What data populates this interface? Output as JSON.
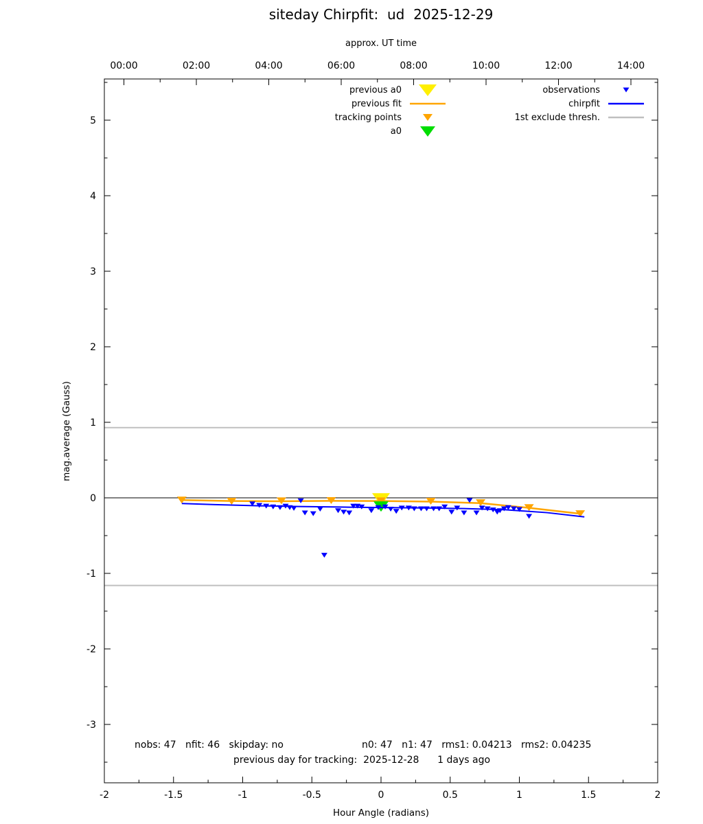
{
  "title": "siteday Chirpfit:  ud  2025-12-29",
  "top_axis": {
    "label": "approx. UT time",
    "ticks": [
      "00:00",
      "02:00",
      "04:00",
      "06:00",
      "08:00",
      "10:00",
      "12:00",
      "14:00"
    ]
  },
  "x_axis": {
    "label": "Hour Angle (radians)",
    "ticks": [
      "-2",
      "-1.5",
      "-1",
      "-0.5",
      "0",
      "0.5",
      "1",
      "1.5",
      "2"
    ]
  },
  "y_axis": {
    "label": "mag.average (Gauss)",
    "ticks": [
      "5",
      "4",
      "3",
      "2",
      "1",
      "0",
      "-1",
      "-2",
      "-3"
    ]
  },
  "legend": {
    "left": [
      {
        "label": "previous a0",
        "marker": "big-triangle",
        "color": "#ffef00"
      },
      {
        "label": "previous fit",
        "marker": "line",
        "color": "#ffa500"
      },
      {
        "label": "tracking points",
        "marker": "small-triangle",
        "color": "#ffa500"
      },
      {
        "label": "a0",
        "marker": "big-triangle2",
        "color": "#00dd00"
      }
    ],
    "right": [
      {
        "label": "observations",
        "marker": "tiny-triangle",
        "color": "#0000ff"
      },
      {
        "label": "chirpfit",
        "marker": "line",
        "color": "#0000ff"
      },
      {
        "label": "1st exclude thresh.",
        "marker": "line",
        "color": "#bfbfbf"
      }
    ]
  },
  "stats": {
    "line1_left": "nobs: 47   nfit: 46   skipday: no",
    "line1_right": "n0: 47   n1: 47   rms1: 0.04213   rms2: 0.04235",
    "line2": "previous day for tracking:  2025-12-28      1 days ago"
  },
  "colors": {
    "observations": "#0000ff",
    "chirpfit": "#0000ff",
    "previous_fit": "#ffa500",
    "tracking_points": "#ffa500",
    "previous_a0": "#ffef00",
    "a0": "#00dd00",
    "threshold": "#bfbfbf",
    "axis": "#000000"
  },
  "chart_data": {
    "type": "scatter",
    "title": "siteday Chirpfit:  ud  2025-12-29",
    "xlabel": "Hour Angle (radians)",
    "ylabel": "mag.average (Gauss)",
    "x2label": "approx. UT time",
    "xlim": [
      -2,
      2
    ],
    "ylim": [
      -3.77,
      5.55
    ],
    "x_ticks_major": [
      -2,
      -1.5,
      -1,
      -0.5,
      0,
      0.5,
      1,
      1.5,
      2
    ],
    "x_ticks_minor_step": 0.25,
    "y_ticks_major": [
      5,
      4,
      3,
      2,
      1,
      0,
      -1,
      -2,
      -3
    ],
    "y_ticks_minor_step": 0.5,
    "top_ticks_hours": [
      "00:00",
      "02:00",
      "04:00",
      "06:00",
      "08:00",
      "10:00",
      "12:00",
      "14:00"
    ],
    "zero_line": 0,
    "series": {
      "observations": {
        "type": "scatter",
        "marker": "triangle-down",
        "color": "#0000ff",
        "points": [
          [
            -0.93,
            -0.08
          ],
          [
            -0.88,
            -0.1
          ],
          [
            -0.83,
            -0.11
          ],
          [
            -0.78,
            -0.12
          ],
          [
            -0.73,
            -0.13
          ],
          [
            -0.69,
            -0.11
          ],
          [
            -0.66,
            -0.13
          ],
          [
            -0.63,
            -0.14
          ],
          [
            -0.58,
            -0.04
          ],
          [
            -0.55,
            -0.2
          ],
          [
            -0.49,
            -0.21
          ],
          [
            -0.44,
            -0.15
          ],
          [
            -0.41,
            -0.76
          ],
          [
            -0.31,
            -0.17
          ],
          [
            -0.27,
            -0.19
          ],
          [
            -0.23,
            -0.2
          ],
          [
            -0.2,
            -0.11
          ],
          [
            -0.17,
            -0.11
          ],
          [
            -0.14,
            -0.12
          ],
          [
            -0.07,
            -0.17
          ],
          [
            -0.02,
            -0.13
          ],
          [
            0.03,
            -0.12
          ],
          [
            0.07,
            -0.15
          ],
          [
            0.11,
            -0.18
          ],
          [
            0.15,
            -0.135
          ],
          [
            0.2,
            -0.135
          ],
          [
            0.24,
            -0.145
          ],
          [
            0.29,
            -0.145
          ],
          [
            0.33,
            -0.145
          ],
          [
            0.38,
            -0.145
          ],
          [
            0.42,
            -0.145
          ],
          [
            0.46,
            -0.12
          ],
          [
            0.51,
            -0.19
          ],
          [
            0.55,
            -0.135
          ],
          [
            0.6,
            -0.2
          ],
          [
            0.64,
            -0.035
          ],
          [
            0.69,
            -0.2
          ],
          [
            0.73,
            -0.135
          ],
          [
            0.77,
            -0.145
          ],
          [
            0.81,
            -0.16
          ],
          [
            0.84,
            -0.19
          ],
          [
            0.86,
            -0.17
          ],
          [
            0.89,
            -0.145
          ],
          [
            0.92,
            -0.13
          ],
          [
            0.96,
            -0.145
          ],
          [
            1.0,
            -0.155
          ],
          [
            1.07,
            -0.245
          ]
        ]
      },
      "tracking_points": {
        "type": "scatter",
        "marker": "triangle-down",
        "color": "#ffa500",
        "points": [
          [
            -1.44,
            -0.03
          ],
          [
            -1.08,
            -0.045
          ],
          [
            -0.72,
            -0.04
          ],
          [
            -0.36,
            -0.036
          ],
          [
            0.0,
            -0.04
          ],
          [
            0.36,
            -0.045
          ],
          [
            0.72,
            -0.065
          ],
          [
            1.07,
            -0.13
          ],
          [
            1.44,
            -0.21
          ]
        ]
      },
      "previous_a0": {
        "type": "point",
        "marker": "triangle-down",
        "color": "#ffef00",
        "point": [
          0.0,
          -0.02
        ]
      },
      "a0": {
        "type": "point",
        "marker": "triangle-down",
        "color": "#00dd00",
        "point": [
          0.0,
          -0.115
        ]
      },
      "previous_fit": {
        "type": "line",
        "color": "#ffa500",
        "points": [
          [
            -1.44,
            -0.03
          ],
          [
            -1.08,
            -0.042
          ],
          [
            -0.72,
            -0.045
          ],
          [
            -0.36,
            -0.04
          ],
          [
            0.0,
            -0.042
          ],
          [
            0.36,
            -0.05
          ],
          [
            0.72,
            -0.07
          ],
          [
            1.07,
            -0.133
          ],
          [
            1.44,
            -0.21
          ]
        ]
      },
      "chirpfit": {
        "type": "line",
        "color": "#0000ff",
        "points": [
          [
            -1.44,
            -0.075
          ],
          [
            -1.2,
            -0.09
          ],
          [
            -0.9,
            -0.105
          ],
          [
            -0.6,
            -0.115
          ],
          [
            -0.3,
            -0.122
          ],
          [
            0.0,
            -0.128
          ],
          [
            0.3,
            -0.134
          ],
          [
            0.6,
            -0.142
          ],
          [
            0.9,
            -0.158
          ],
          [
            1.2,
            -0.196
          ],
          [
            1.47,
            -0.252
          ]
        ]
      },
      "exclude_threshold": {
        "type": "hlines",
        "color": "#bfbfbf",
        "values": [
          0.93,
          -1.16
        ]
      }
    },
    "annotations": [
      "nobs: 47   nfit: 46   skipday: no",
      "n0: 47   n1: 47   rms1: 0.04213   rms2: 0.04235",
      "previous day for tracking:  2025-12-28      1 days ago"
    ]
  }
}
